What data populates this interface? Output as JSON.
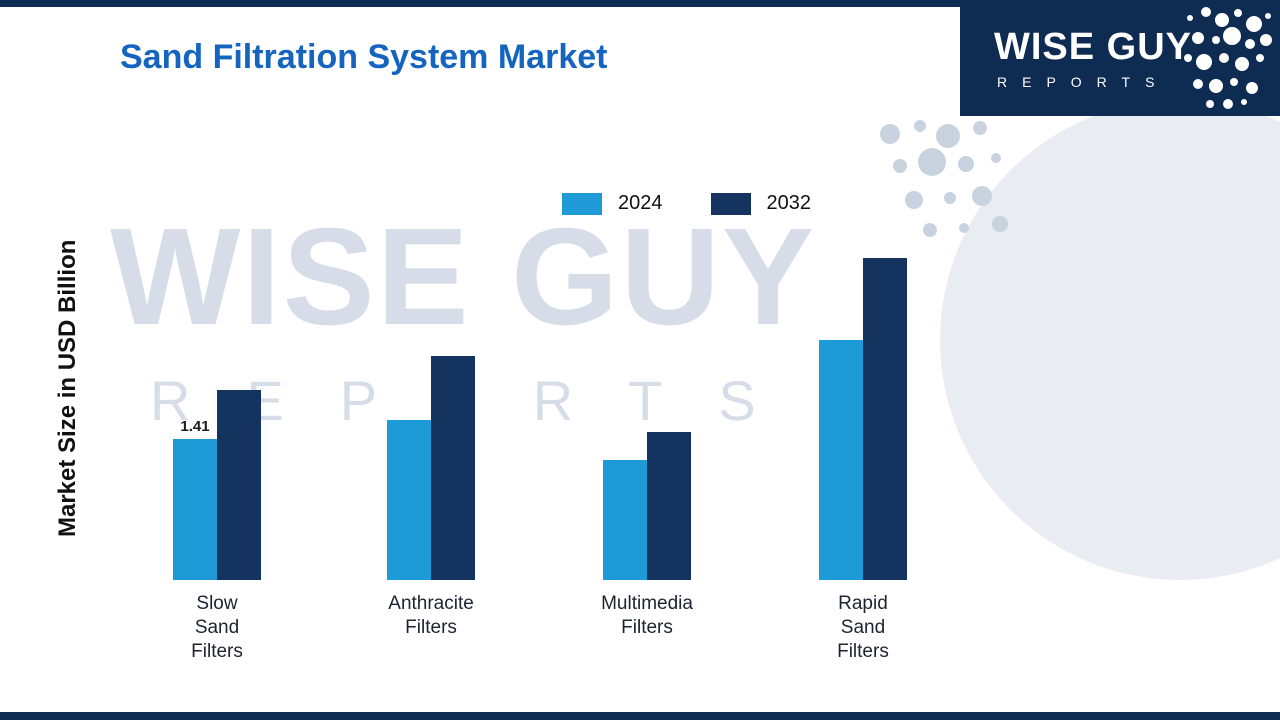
{
  "title": "Sand Filtration System Market",
  "logo": {
    "wordmark": "WISE GUY",
    "subtitle": "REPORTS"
  },
  "watermark": {
    "wordmark": "WISE GUY",
    "subtitle": "REPORTS"
  },
  "colors": {
    "title_blue": "#1565c0",
    "navy": "#0e2b52",
    "bar_2024": "#1e9bd7",
    "bar_2032": "#14335e",
    "watermark_gray": "#d7dde8"
  },
  "chart_data": {
    "type": "bar",
    "title": "Sand Filtration System Market",
    "categories": [
      "Slow Sand Filters",
      "Anthracite Filters",
      "Multimedia Filters",
      "Rapid Sand Filters"
    ],
    "category_label_lines": [
      [
        "Slow",
        "Sand",
        "Filters"
      ],
      [
        "Anthracite",
        "Filters"
      ],
      [
        "Multimedia",
        "Filters"
      ],
      [
        "Rapid",
        "Sand",
        "Filters"
      ]
    ],
    "series": [
      {
        "name": "2024",
        "color": "#1e9bd7",
        "values": [
          1.41,
          1.6,
          1.2,
          2.4
        ]
      },
      {
        "name": "2032",
        "color": "#14335e",
        "values": [
          1.9,
          2.24,
          1.48,
          3.22
        ]
      }
    ],
    "annotations": [
      {
        "series": "2024",
        "category": "Slow Sand Filters",
        "text": "1.41"
      }
    ],
    "xlabel": "",
    "ylabel": "Market Size in USD Billion",
    "ylim": [
      0,
      3.5
    ],
    "grid": false,
    "legend_position": "top-center"
  }
}
